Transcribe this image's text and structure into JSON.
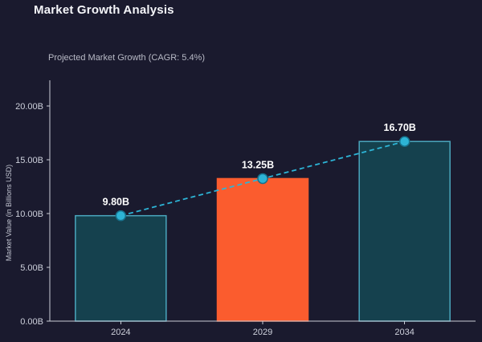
{
  "title": "Market Growth Analysis",
  "subtitle": "Projected Market Growth (CAGR: 5.4%)",
  "chart_data": {
    "type": "bar",
    "title": "Market Growth Analysis",
    "subtitle": "Projected Market Growth (CAGR: 5.4%)",
    "categories": [
      "2024",
      "2029",
      "2034"
    ],
    "values": [
      9.8,
      13.25,
      16.7
    ],
    "value_labels": [
      "9.80B",
      "13.25B",
      "16.70B"
    ],
    "xlabel": "",
    "ylabel": "Market Value (in Billions USD)",
    "ylim": [
      0,
      20
    ],
    "yticks": [
      0,
      5,
      10,
      15,
      20
    ],
    "ytick_labels": [
      "0.00B",
      "5.00B",
      "10.00B",
      "15.00B",
      "20.00B"
    ],
    "grid": false,
    "legend": false,
    "bar_colors": [
      "#15414e",
      "#fb5c2e",
      "#15414e"
    ],
    "bar_border_colors": [
      "#4aa6bd",
      "#fb5c2e",
      "#4aa6bd"
    ],
    "trend_line_color": "#2db4d6",
    "trend_line_style": "dashed",
    "marker_color": "#2db4d6",
    "marker_edge_color": "#17718c"
  },
  "colors": {
    "background": "#1a1a2e",
    "axis": "#c9ccd6",
    "text": "#ffffff",
    "muted": "#b8bac6"
  }
}
